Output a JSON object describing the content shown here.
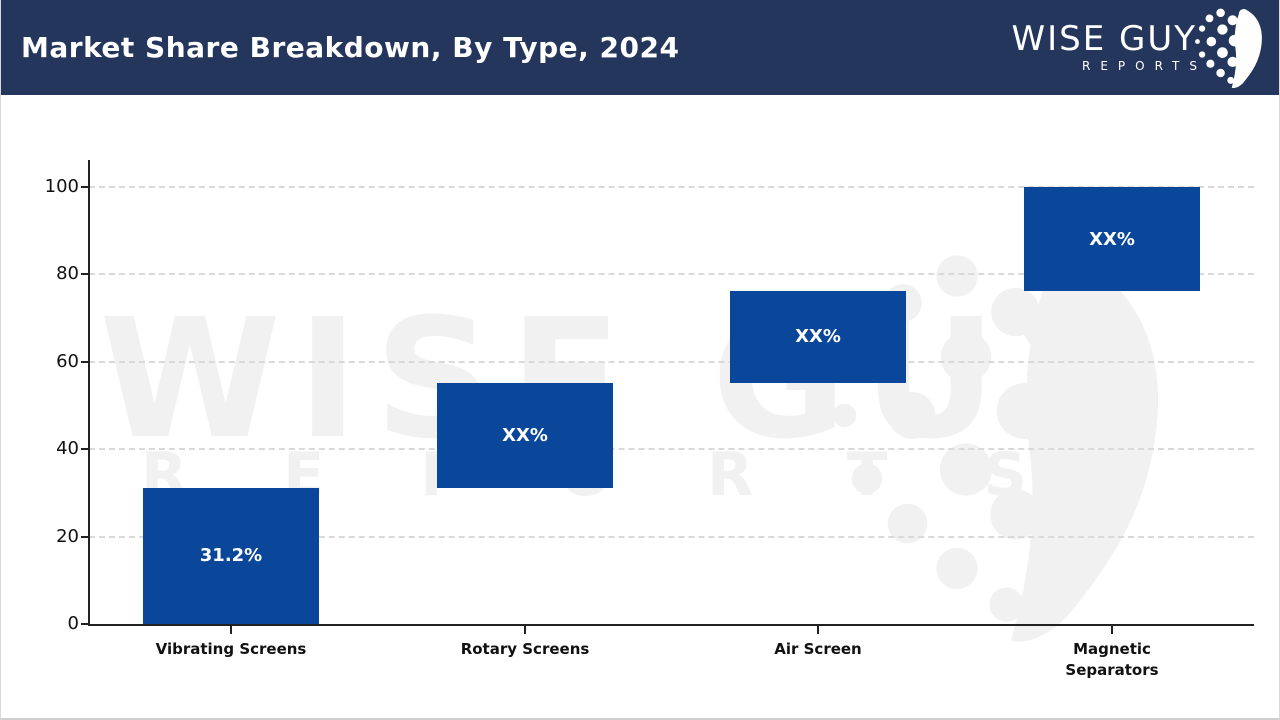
{
  "header": {
    "title": "Market Share Breakdown, By Type, 2024",
    "logo": {
      "line1": "WISE GUY",
      "line2": "REPORTS"
    }
  },
  "watermark": {
    "line1": "WISE GUY",
    "line2": "REPORTS"
  },
  "chart_data": {
    "type": "bar",
    "subtype": "floating-waterfall-bars",
    "title": "Market Share Breakdown, By Type, 2024",
    "categories": [
      "Vibrating Screens",
      "Rotary Screens",
      "Air Screen",
      "Magnetic Separators"
    ],
    "category_labels": [
      "Vibrating Screens",
      "Rotary Screens",
      "Air Screen",
      "Magnetic\nSeparators"
    ],
    "segments": [
      {
        "category": "Vibrating Screens",
        "start": 0,
        "end": 31.2,
        "label": "31.2%"
      },
      {
        "category": "Rotary Screens",
        "start": 31.2,
        "end": 55.2,
        "label": "XX%"
      },
      {
        "category": "Air Screen",
        "start": 55.2,
        "end": 76.2,
        "label": "XX%"
      },
      {
        "category": "Magnetic Separators",
        "start": 76.2,
        "end": 100,
        "label": "XX%"
      }
    ],
    "xlabel": "",
    "ylabel": "",
    "ylim": [
      0,
      100
    ],
    "yticks": [
      0,
      20,
      40,
      60,
      80,
      100
    ],
    "grid": "horizontal-dashed",
    "legend": null
  },
  "colors": {
    "header_bg": "#24365c",
    "bar": "#0a4699",
    "bar_label": "#ffffff",
    "axis": "#222222",
    "grid": "#d9d9d9",
    "watermark": "#f1f1f1"
  }
}
